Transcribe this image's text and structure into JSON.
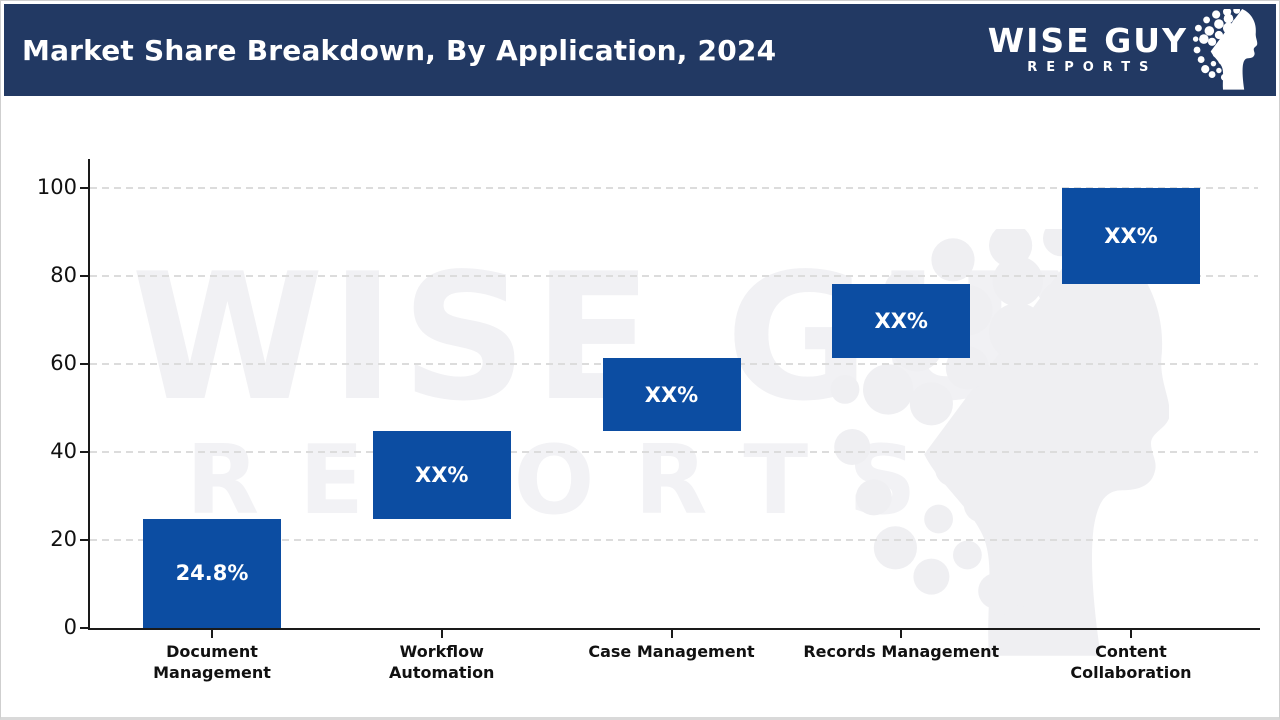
{
  "header": {
    "title": "Market Share Breakdown, By Application, 2024",
    "logo": {
      "line1": "WISE GUY",
      "line2": "REPORTS"
    }
  },
  "watermark": {
    "line1": "WISE GUY",
    "line2": "REPORTS"
  },
  "chart_data": {
    "type": "bar",
    "subtype": "waterfall",
    "title": "Market Share Breakdown, By Application, 2024",
    "categories": [
      "Document\nManagement",
      "Workflow\nAutomation",
      "Case Management",
      "Records Management",
      "Content\nCollaboration"
    ],
    "segments": [
      {
        "category": "Document\nManagement",
        "start": 0,
        "end": 24.8,
        "label": "24.8%"
      },
      {
        "category": "Workflow\nAutomation",
        "start": 24.8,
        "end": 44.8,
        "label": "XX%"
      },
      {
        "category": "Case Management",
        "start": 44.8,
        "end": 61.3,
        "label": "XX%"
      },
      {
        "category": "Records Management",
        "start": 61.3,
        "end": 78.2,
        "label": "XX%"
      },
      {
        "category": "Content\nCollaboration",
        "start": 78.2,
        "end": 100,
        "label": "XX%"
      }
    ],
    "xlabel": "",
    "ylabel": "",
    "ylim": [
      0,
      100
    ],
    "yticks": [
      0,
      20,
      40,
      60,
      80,
      100
    ],
    "grid": "dashed-horizontal",
    "legend": "none",
    "bar_color": "#0c4da2",
    "bar_label_color": "#ffffff"
  },
  "colors": {
    "header_bg": "#223963",
    "bar": "#0c4da2",
    "gridline": "#dcdcdc",
    "axis": "#1a1a1a",
    "watermark": "#f1f1f4"
  }
}
